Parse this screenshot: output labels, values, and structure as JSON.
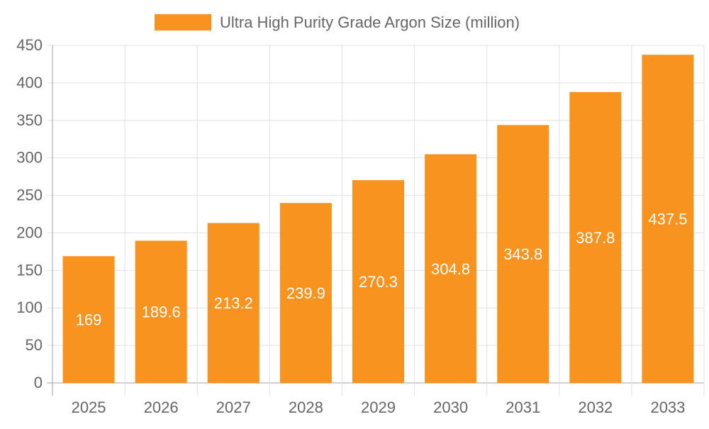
{
  "chart_data": {
    "type": "bar",
    "categories": [
      "2025",
      "2026",
      "2027",
      "2028",
      "2029",
      "2030",
      "2031",
      "2032",
      "2033"
    ],
    "series": [
      {
        "name": "Ultra High Purity Grade Argon Size (million)",
        "values": [
          169,
          189.6,
          213.2,
          239.9,
          270.3,
          304.8,
          343.8,
          387.8,
          437.5
        ]
      }
    ],
    "ylim": [
      0,
      450
    ],
    "yticks": [
      0,
      50,
      100,
      150,
      200,
      250,
      300,
      350,
      400,
      450
    ],
    "grid": true,
    "legend": "top",
    "data_labels": true,
    "colors": {
      "bar": "#F7931E",
      "grid": "#E0E0E0",
      "axis": "#A0A0A0",
      "text": "#666666",
      "label": "#FFFFFF"
    }
  }
}
